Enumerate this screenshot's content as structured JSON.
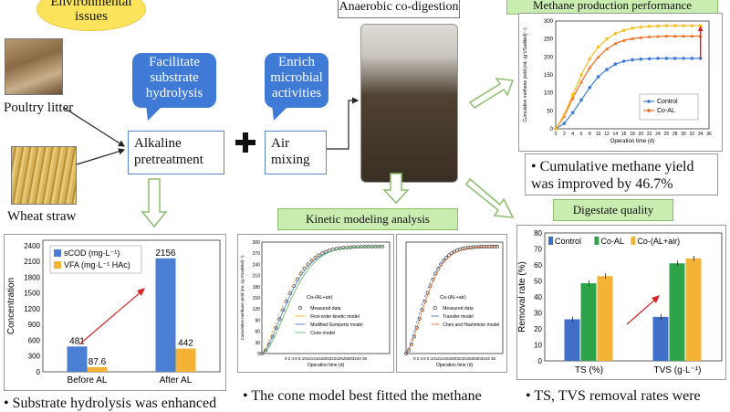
{
  "environmental_issues": "Environmental issues",
  "anaerobic_codigestion": "Anaerobic co-digestion",
  "methane_title": "Methane production performance",
  "poultry_litter": "Poultry litter",
  "wheat_straw": "Wheat straw",
  "facilitate": "Facilitate substrate hydrolysis",
  "enrich": "Enrich microbial activities",
  "alkaline": "Alkaline pretreatment",
  "air": "Air mixing",
  "kinetic_title": "Kinetic modeling analysis",
  "digestate_title": "Digestate quality",
  "methane_result": "Cumulative methane yield was improved by 46.7%",
  "cone_text": "The cone model best fitted the methane",
  "substrate_text": "Substrate hydrolysis was enhanced",
  "ts_text": "TS, TVS removal rates were",
  "bullet": "•",
  "colors": {
    "blue": "#3f7ad6",
    "orange": "#f5a623",
    "green": "#2e9e3e",
    "red": "#d62728"
  },
  "chart_data": [
    {
      "type": "line",
      "ylabel": "Cumulative methane yield (mL·(g VSadded)⁻¹)",
      "xlabel": "Operation time (d)",
      "ylim": [
        0,
        300
      ],
      "xlim": [
        0,
        36
      ],
      "yticks": [
        0,
        50,
        100,
        150,
        200,
        250,
        300
      ],
      "xticks": [
        0,
        2,
        4,
        6,
        8,
        10,
        12,
        14,
        16,
        18,
        20,
        22,
        24,
        26,
        28,
        30,
        32,
        34,
        36
      ],
      "series": [
        {
          "name": "Control",
          "color": "#3f7ad6",
          "x": [
            0,
            2,
            4,
            6,
            8,
            10,
            12,
            14,
            16,
            18,
            20,
            22,
            24,
            26,
            28,
            30,
            32,
            34
          ],
          "y": [
            0,
            15,
            45,
            80,
            115,
            145,
            165,
            180,
            188,
            192,
            194,
            195,
            196,
            196,
            196,
            196,
            196,
            196
          ]
        },
        {
          "name": "Co-AL",
          "color": "#f26b1d",
          "x": [
            0,
            2,
            4,
            6,
            8,
            10,
            12,
            14,
            16,
            18,
            20,
            22,
            24,
            26,
            28,
            30,
            32,
            34
          ],
          "y": [
            0,
            35,
            85,
            130,
            170,
            200,
            222,
            237,
            246,
            251,
            254,
            256,
            257,
            258,
            258,
            258,
            258,
            258
          ]
        },
        {
          "name": "",
          "color": "#f5c028",
          "x": [
            0,
            2,
            4,
            6,
            8,
            10,
            12,
            14,
            16,
            18,
            20,
            22,
            24,
            26,
            28,
            30,
            32,
            34
          ],
          "y": [
            0,
            40,
            95,
            150,
            195,
            228,
            250,
            265,
            274,
            280,
            283,
            285,
            286,
            287,
            287,
            287,
            287,
            287
          ]
        }
      ]
    },
    {
      "type": "bar",
      "ylabel": "Concentration",
      "categories": [
        "Before AL",
        "After AL"
      ],
      "ylim": [
        0,
        2500
      ],
      "yticks": [
        0,
        300,
        600,
        900,
        1200,
        1500,
        1800,
        2100,
        2400
      ],
      "series": [
        {
          "name": "sCOD (mg·L⁻¹)",
          "color": "#4a7fd4",
          "values": [
            481,
            2156
          ]
        },
        {
          "name": "VFA (mg·L⁻¹ HAc)",
          "color": "#f5b335",
          "values": [
            87.6,
            442
          ]
        }
      ],
      "labels": [
        [
          "481",
          "87.6"
        ],
        [
          "2156",
          "442"
        ]
      ]
    },
    {
      "type": "bar",
      "ylabel": "Removal rate (%)",
      "categories": [
        "TS (%)",
        "TVS (g·L⁻¹)"
      ],
      "ylim": [
        0,
        80
      ],
      "yticks": [
        0,
        10,
        20,
        30,
        40,
        50,
        60,
        70,
        80
      ],
      "series": [
        {
          "name": "Control",
          "color": "#3f6fc6",
          "values": [
            26,
            27.5
          ]
        },
        {
          "name": "Co-AL",
          "color": "#2fa34a",
          "values": [
            48.5,
            61
          ]
        },
        {
          "name": "Co-(AL+air)",
          "color": "#f5b335",
          "values": [
            53,
            64
          ]
        }
      ]
    },
    {
      "type": "scatter",
      "title": "Co-(AL+air)",
      "ylabel": "Cumulative methane yield (mL·(g VSadded)⁻¹)",
      "xlabel": "Operation time (d)",
      "ylim": [
        0,
        300
      ],
      "legend": [
        "Measured data",
        "First-order kinetic model",
        "Modified Gompertz model",
        "Cone model"
      ]
    },
    {
      "type": "scatter",
      "title": "Co-(AL+air)",
      "ylabel": "Cumulative methane yield (mL·(g VSadded)⁻¹)",
      "xlabel": "Operation time (d)",
      "ylim": [
        0,
        300
      ],
      "legend": [
        "Measured data",
        "Transfer model",
        "Chen and Hashimoto model"
      ]
    }
  ],
  "x_tick_text": "0 2 4 6 8 10121416182022242628303234 36"
}
